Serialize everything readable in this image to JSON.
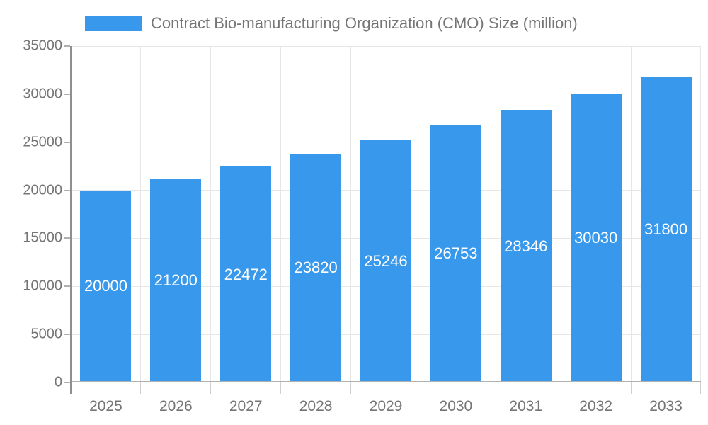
{
  "chart_data": {
    "type": "bar",
    "title": "Contract Bio-manufacturing Organization (CMO) Size (million)",
    "categories": [
      "2025",
      "2026",
      "2027",
      "2028",
      "2029",
      "2030",
      "2031",
      "2032",
      "2033"
    ],
    "values": [
      20000,
      21200,
      22472,
      23820,
      25246,
      26753,
      28346,
      30030,
      31800
    ],
    "value_labels": [
      "20000",
      "21200",
      "22472",
      "23820",
      "25246",
      "26753",
      "28346",
      "30030",
      "31800"
    ],
    "xlabel": "",
    "ylabel": "",
    "ylim": [
      0,
      35000
    ],
    "ytick_step": 5000,
    "ytick_labels": [
      "0",
      "5000",
      "10000",
      "15000",
      "20000",
      "25000",
      "30000",
      "35000"
    ],
    "grid": true,
    "legend_position": "top",
    "legend_entries": [
      "Contract Bio-manufacturing Organization (CMO) Size (million)"
    ],
    "colors": {
      "bar": "#3899ec",
      "value_label_text": "#ffffff",
      "axis_text": "#757575",
      "gridline": "#e6e6e6",
      "baseline": "#b0b0b0",
      "axis_line": "#8f8f8f"
    }
  }
}
